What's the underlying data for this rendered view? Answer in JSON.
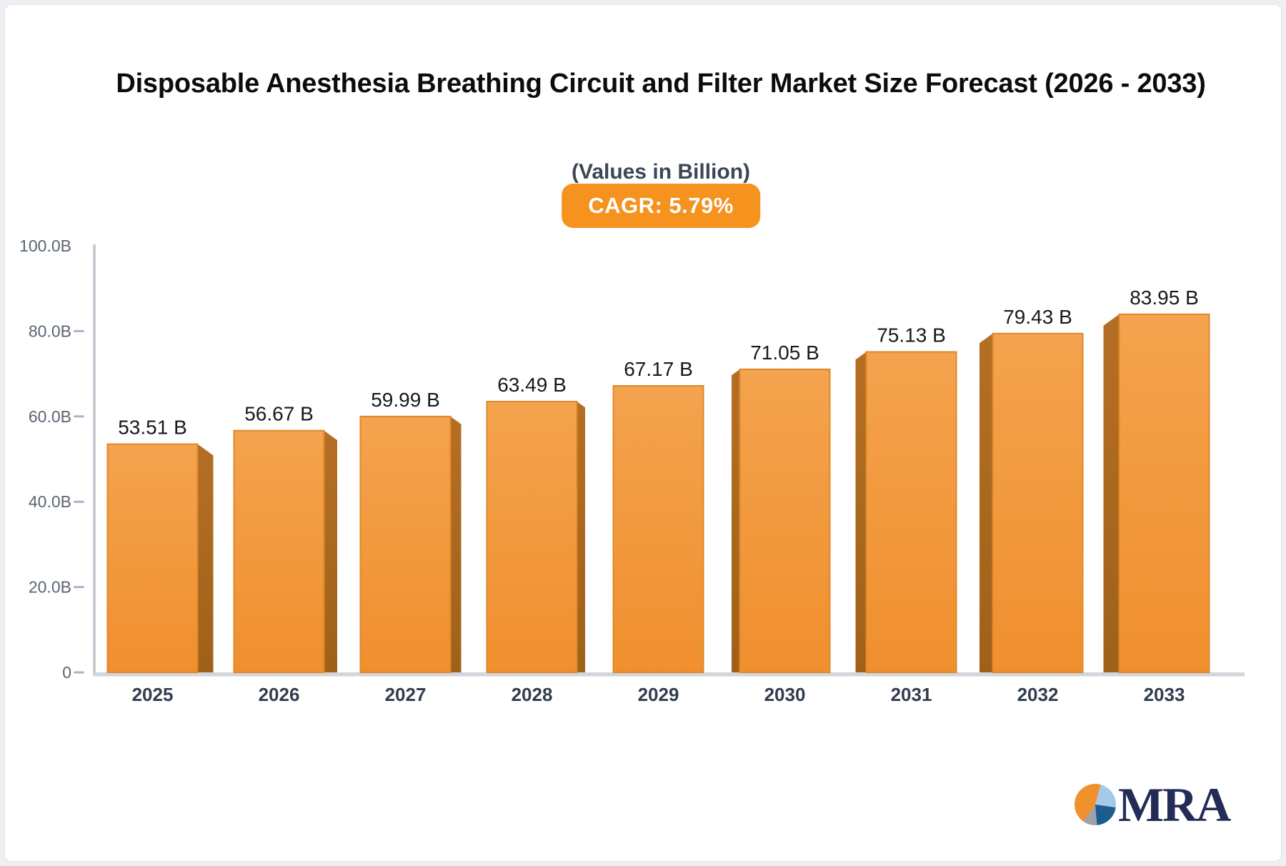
{
  "page": {
    "background_color": "#EDEFF2",
    "card_color": "#FFFFFF"
  },
  "header": {
    "title": "Disposable Anesthesia Breathing Circuit and Filter Market Size Forecast (2026 - 2033)",
    "subtitle": "(Values in Billion)",
    "cagr_badge": "CAGR: 5.79%",
    "badge_color": "#F6921E"
  },
  "logo": {
    "text": "MRA",
    "text_color": "#232C56",
    "pie_icon_colors": [
      "#F0912C",
      "#A3CBE8",
      "#1D5C8F",
      "#9FA1A6"
    ]
  },
  "chart_data": {
    "type": "bar",
    "title": "Disposable Anesthesia Breathing Circuit and Filter Market Size Forecast (2026 - 2033)",
    "subtitle": "(Values in Billion)",
    "cagr": "5.79%",
    "categories": [
      "2025",
      "2026",
      "2027",
      "2028",
      "2029",
      "2030",
      "2031",
      "2032",
      "2033"
    ],
    "values": [
      53.51,
      56.67,
      59.99,
      63.49,
      67.17,
      71.05,
      75.13,
      79.43,
      83.95
    ],
    "value_labels": [
      "53.51 B",
      "56.67 B",
      "59.99 B",
      "63.49 B",
      "67.17 B",
      "71.05 B",
      "75.13 B",
      "79.43 B",
      "83.95 B"
    ],
    "unit": "Billion USD",
    "xlabel": "",
    "ylabel": "",
    "ylim": [
      0,
      100
    ],
    "y_ticks": [
      {
        "value": 100,
        "label": "100.0B",
        "dash": false
      },
      {
        "value": 80,
        "label": "80.0B",
        "dash": true
      },
      {
        "value": 60,
        "label": "60.0B",
        "dash": true
      },
      {
        "value": 40,
        "label": "40.0B",
        "dash": true
      },
      {
        "value": 20,
        "label": "20.0B",
        "dash": true
      },
      {
        "value": 0,
        "label": "0",
        "dash": true
      }
    ],
    "grid": false,
    "legend": false,
    "style_3d": true,
    "colors": {
      "bar_front_top": "#F4A34E",
      "bar_front_bottom": "#F08F2E",
      "bar_side_top": "#B56F24",
      "bar_side_bottom": "#9F6119",
      "bar_stroke": "#DE8828",
      "axis_line": "#C6CBD3",
      "baseline": "#D2D6DC",
      "tick_dash": "#AEB4BF",
      "y_label": "#5A6472",
      "x_label": "#323D4D",
      "value_label": "#17191D"
    }
  }
}
